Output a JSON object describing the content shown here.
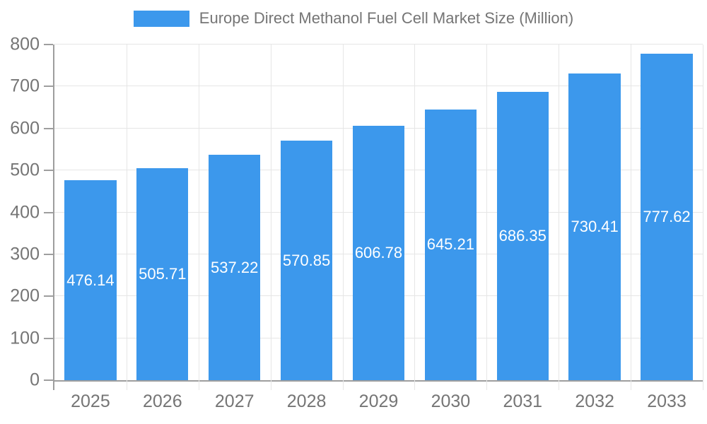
{
  "chart_data": {
    "type": "bar",
    "title": "Europe Direct Methanol Fuel Cell Market Size (Million)",
    "categories": [
      "2025",
      "2026",
      "2027",
      "2028",
      "2029",
      "2030",
      "2031",
      "2032",
      "2033"
    ],
    "values": [
      476.14,
      505.71,
      537.22,
      570.85,
      606.78,
      645.21,
      686.35,
      730.41,
      777.62
    ],
    "xlabel": "",
    "ylabel": "",
    "ylim": [
      0,
      800
    ],
    "ytick_step": 100,
    "grid": "on",
    "legend_position": "top",
    "value_label_position": "inside-center"
  },
  "colors": {
    "bar": "#3C98EC",
    "grid": "#E6E6E6",
    "axis": "#9E9E9E",
    "tick_label": "#757575",
    "legend_label": "#757575",
    "value_label": "#FFFFFF",
    "background": "#FFFFFF"
  }
}
